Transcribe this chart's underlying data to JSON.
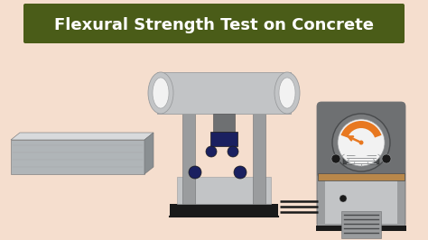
{
  "bg_color": "#f5dece",
  "title_text": "Flexural Strength Test on Concrete",
  "title_bg": "#4a5c18",
  "title_text_color": "#ffffff",
  "gray_light": "#c2c4c6",
  "gray_mid": "#9a9c9e",
  "gray_dark": "#6e7072",
  "gray_darker": "#484a4c",
  "black": "#1a1a1a",
  "navy": "#1a2060",
  "orange": "#e87820",
  "concrete_top": "#d8dadc",
  "concrete_face": "#b0b5b8",
  "concrete_side": "#8a8f92",
  "concrete_bottom": "#9a9f9a",
  "wood_color": "#b8874a",
  "white": "#f2f2f2",
  "gauge_bg": "#787a7c"
}
